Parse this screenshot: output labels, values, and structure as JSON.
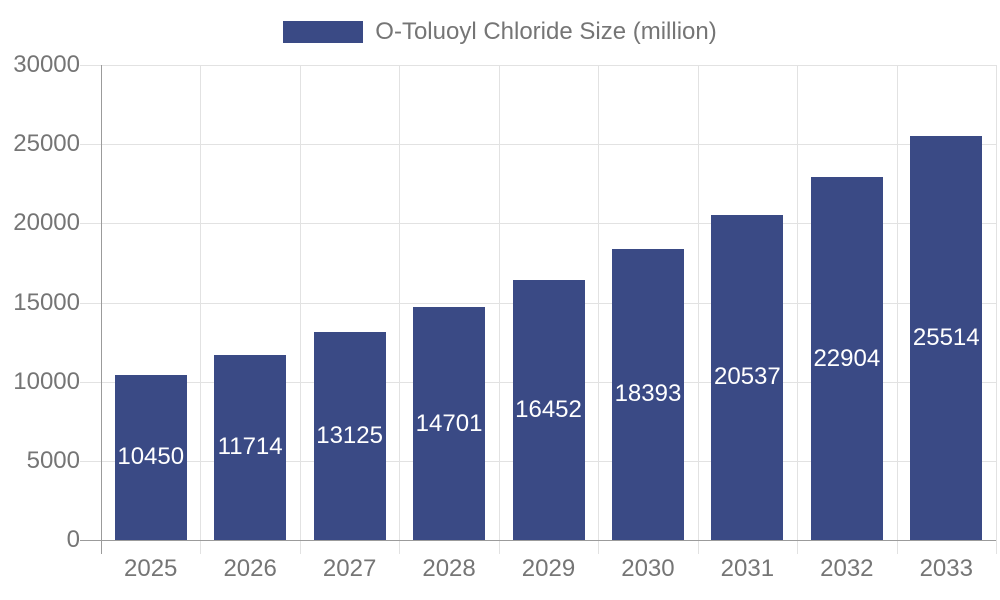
{
  "legend": {
    "label": "O-Toluoyl Chloride Size (million)"
  },
  "chart_data": {
    "type": "bar",
    "title": "O-Toluoyl Chloride Size (million)",
    "categories": [
      "2025",
      "2026",
      "2027",
      "2028",
      "2029",
      "2030",
      "2031",
      "2032",
      "2033"
    ],
    "values": [
      10450,
      11714,
      13125,
      14701,
      16452,
      18393,
      20537,
      22904,
      25514
    ],
    "xlabel": "",
    "ylabel": "",
    "ylim": [
      0,
      30000
    ],
    "yticks": [
      0,
      5000,
      10000,
      15000,
      20000,
      25000,
      30000
    ],
    "grid": true,
    "legend_position": "top-center",
    "value_labels": "inside-center",
    "colors": {
      "bar": "#3A4A85",
      "grid": "#e2e2e2",
      "axis": "#9b9b9b",
      "tick_label": "#757575",
      "value_label": "#ffffff",
      "background": "#ffffff"
    }
  }
}
